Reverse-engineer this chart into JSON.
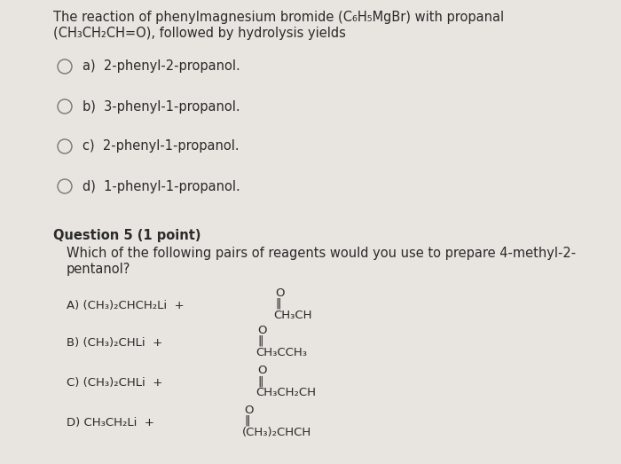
{
  "bg_color": "#e8e4df",
  "text_color": "#2a2a2a",
  "title_q4_line1": "The reaction of phenylmagnesium bromide (C₆H₅MgBr) with propanal",
  "title_q4_line2": "(CH₃CH₂CH=O), followed by hydrolysis yields",
  "options_q4": [
    "a)  2-phenyl-2-propanol.",
    "b)  3-phenyl-1-propanol.",
    "c)  2-phenyl-1-propanol.",
    "d)  1-phenyl-1-propanol."
  ],
  "q5_header": "Question 5 (1 point)",
  "q5_text_line1": "Which of the following pairs of reagents would you use to prepare 4-methyl-2-",
  "q5_text_line2": "pentanol?",
  "ans_A_label": "A) (CH₃)₂CHCH₂Li  +  ",
  "ans_A_chem_top": "O",
  "ans_A_chem_mid": "‖",
  "ans_A_chem_bot": "CH₃CH",
  "ans_B_label": "B) (CH₃)₂CHLi  +  ",
  "ans_B_chem_top": "O",
  "ans_B_chem_mid": "‖",
  "ans_B_chem_bot": "CH₃CCH₃",
  "ans_C_label": "C) (CH₃)₂CHLi  +  ",
  "ans_C_chem_top": "O",
  "ans_C_chem_mid": "‖",
  "ans_C_chem_bot": "CH₃CH₂CH",
  "ans_D_label": "D) CH₃CH₂Li  +  ",
  "ans_D_chem_top": "O",
  "ans_D_chem_mid": "‖",
  "ans_D_chem_bot": "(CH₃)₂CHCH",
  "font_size": 10.5,
  "font_size_small": 9.5
}
